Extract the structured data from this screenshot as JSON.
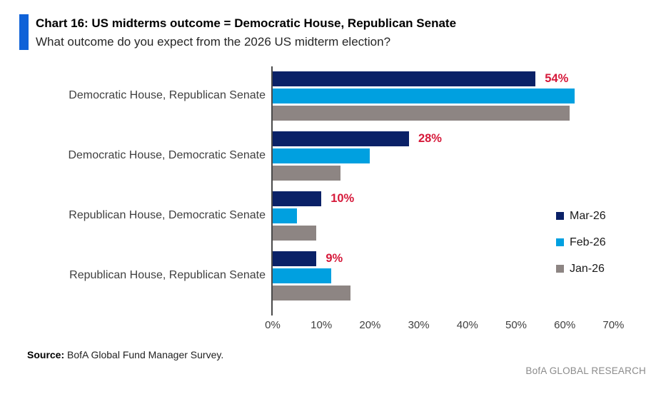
{
  "header": {
    "title": "Chart 16: US midterms outcome = Democratic House, Republican Senate",
    "subtitle": "What outcome do you expect from the 2026 US midterm election?",
    "accent_color": "#0f62d8"
  },
  "chart_data": {
    "type": "bar",
    "orientation": "horizontal",
    "categories": [
      "Democratic House, Republican Senate",
      "Democratic House, Democratic Senate",
      "Republican House, Democratic Senate",
      "Republican House, Republican Senate"
    ],
    "series": [
      {
        "name": "Mar-26",
        "color": "#0a2167",
        "values": [
          54,
          28,
          10,
          9
        ]
      },
      {
        "name": "Feb-26",
        "color": "#00a0e0",
        "values": [
          62,
          20,
          5,
          12
        ]
      },
      {
        "name": "Jan-26",
        "color": "#8d8583",
        "values": [
          61,
          14,
          9,
          16
        ]
      }
    ],
    "data_labels": {
      "series": "Mar-26",
      "values": [
        "54%",
        "28%",
        "10%",
        "9%"
      ],
      "color": "#d6193a"
    },
    "x_ticks": [
      "0%",
      "10%",
      "20%",
      "30%",
      "40%",
      "50%",
      "60%",
      "70%"
    ],
    "xlim": [
      0,
      70
    ],
    "grid": false,
    "legend_position": "right"
  },
  "footer": {
    "source_label": "Source:",
    "source_text": " BofA Global Fund Manager Survey.",
    "brand": "BofA GLOBAL RESEARCH"
  }
}
